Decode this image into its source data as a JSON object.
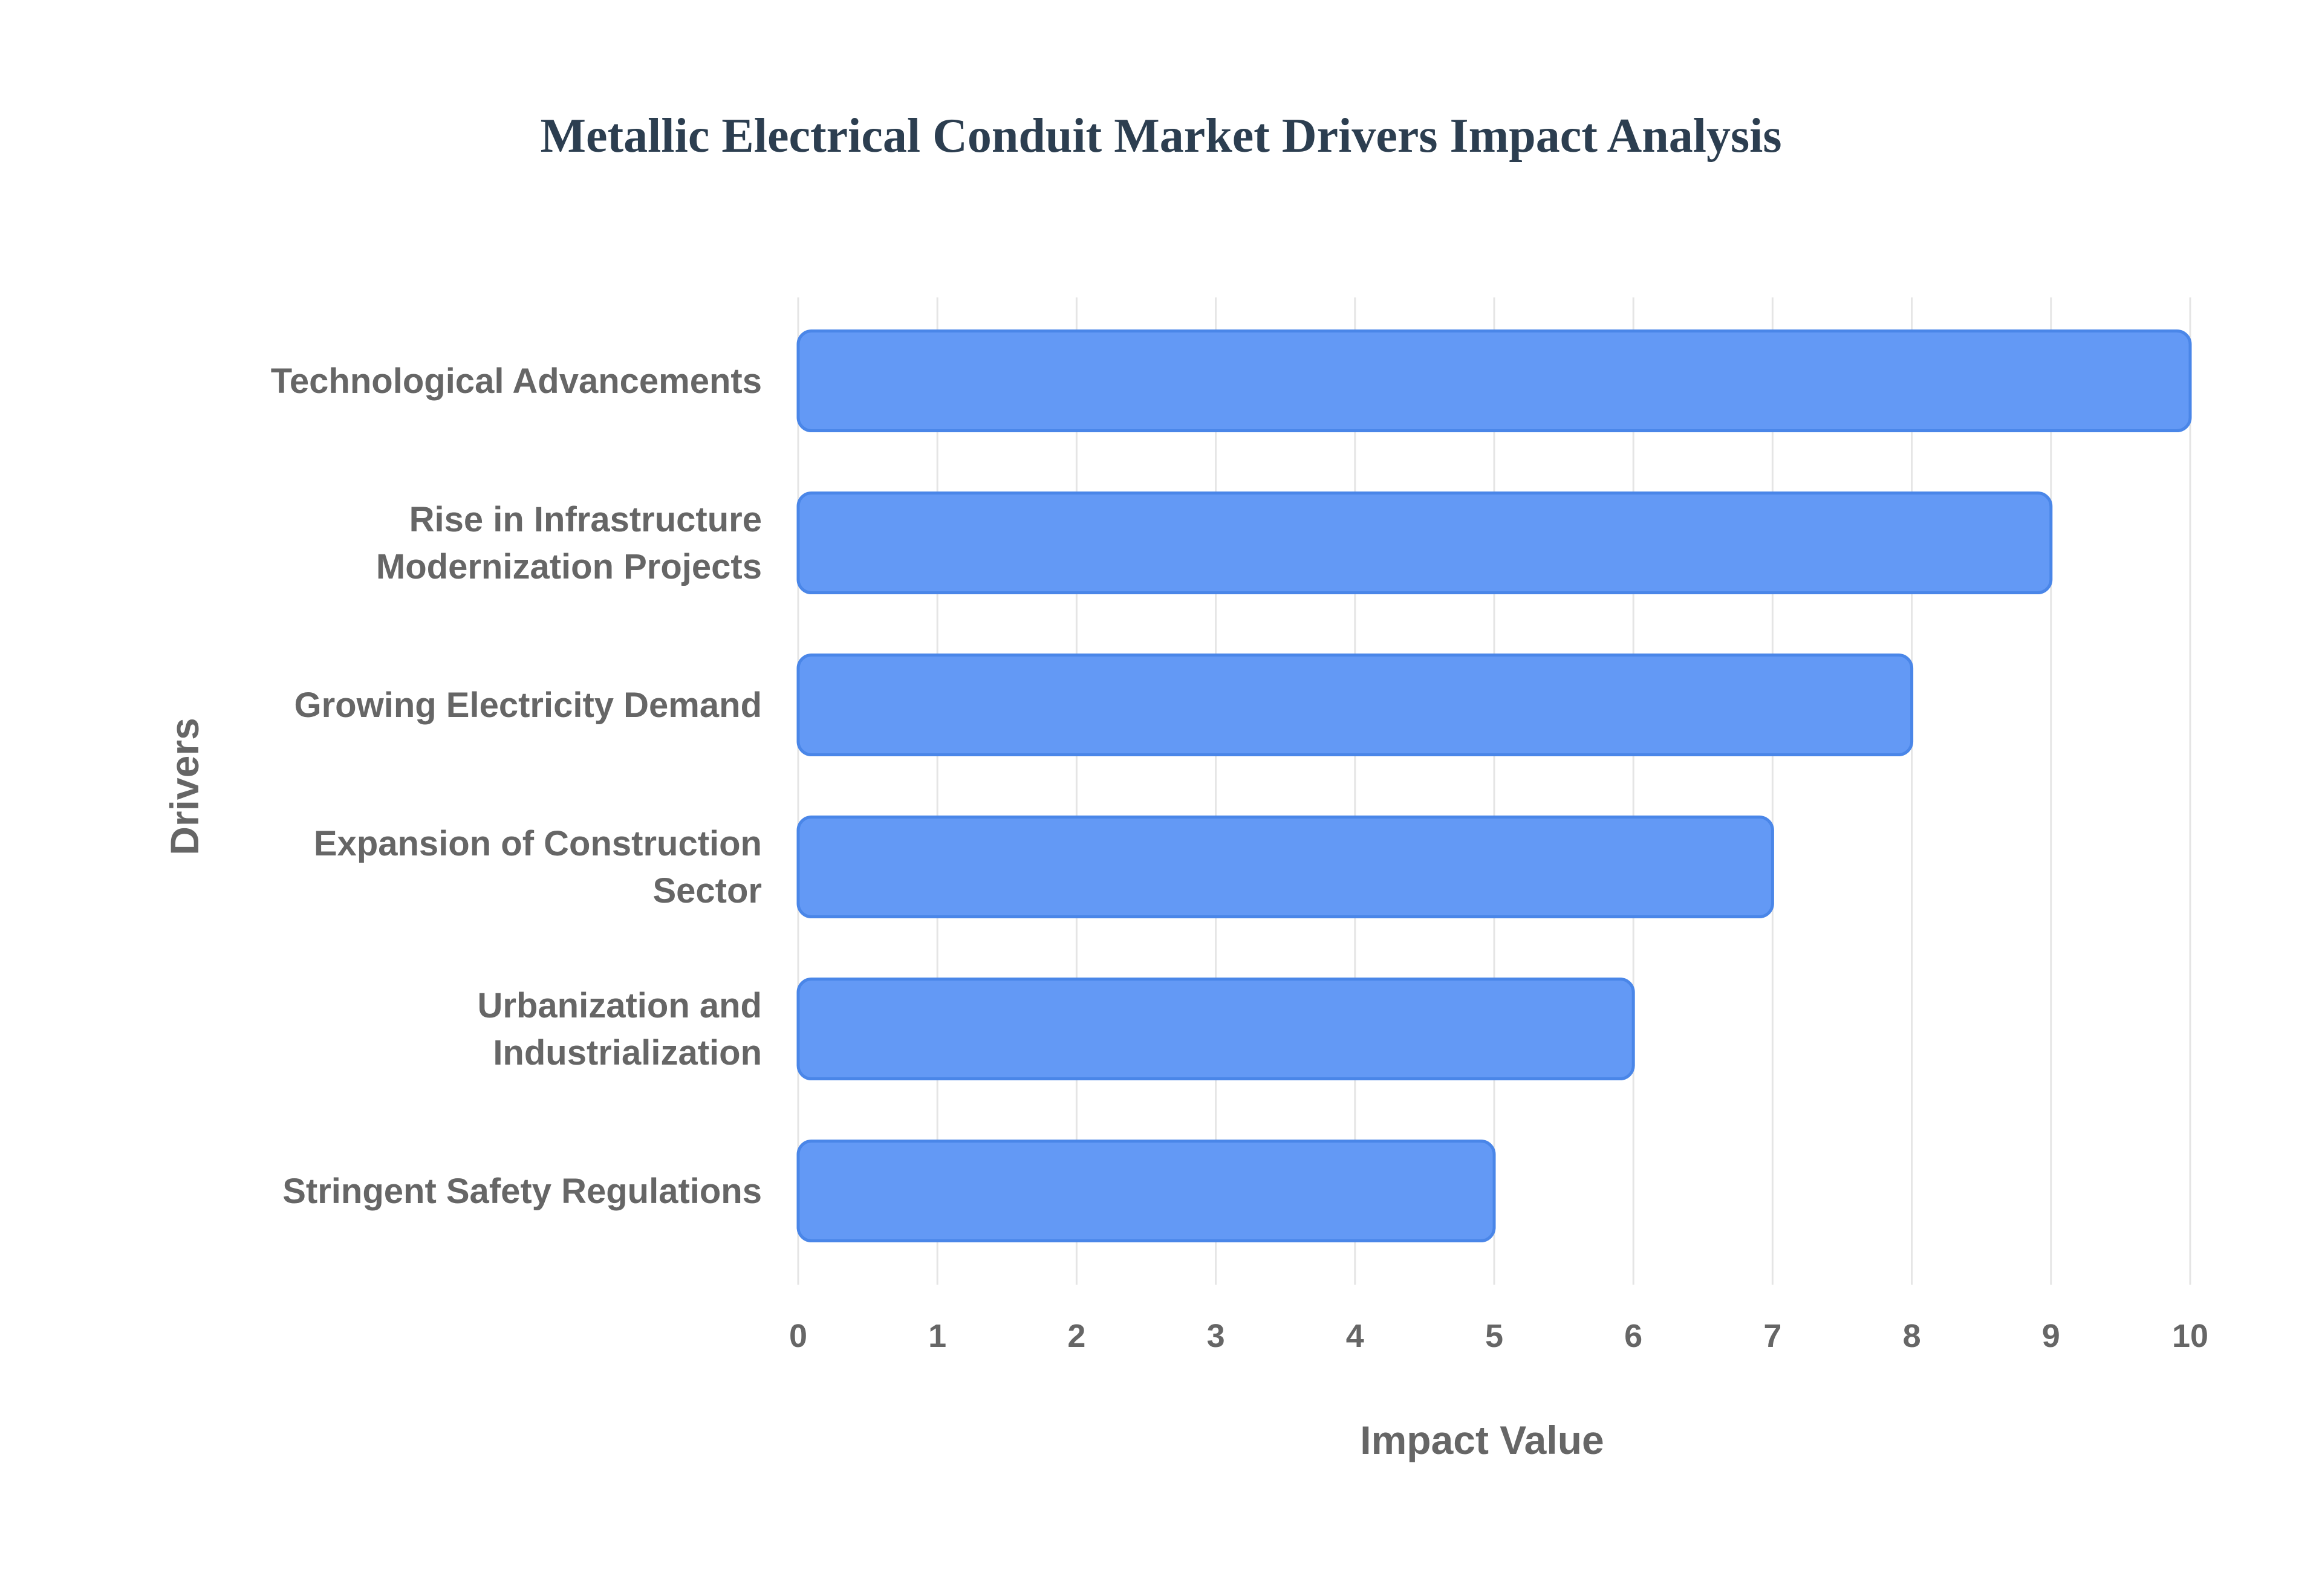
{
  "chart_data": {
    "type": "bar",
    "orientation": "horizontal",
    "title": "Metallic Electrical Conduit Market Drivers Impact Analysis",
    "xlabel": "Impact Value",
    "ylabel": "Drivers",
    "xlim": [
      0,
      10
    ],
    "xticks": [
      "0",
      "1",
      "2",
      "3",
      "4",
      "5",
      "6",
      "7",
      "8",
      "9",
      "10"
    ],
    "grid": true,
    "categories": [
      [
        "Technological Advancements"
      ],
      [
        "Rise in Infrastructure",
        "Modernization Projects"
      ],
      [
        "Growing Electricity Demand"
      ],
      [
        "Expansion of Construction",
        "Sector"
      ],
      [
        "Urbanization and",
        "Industrialization"
      ],
      [
        "Stringent Safety Regulations"
      ]
    ],
    "values": [
      10,
      9,
      8,
      7,
      6,
      5
    ],
    "colors": {
      "bar_fill": "#6399f5",
      "bar_border": "#4a86e8",
      "grid": "#e5e5e5",
      "title": "#2c3e50",
      "labels": "#666666"
    }
  }
}
